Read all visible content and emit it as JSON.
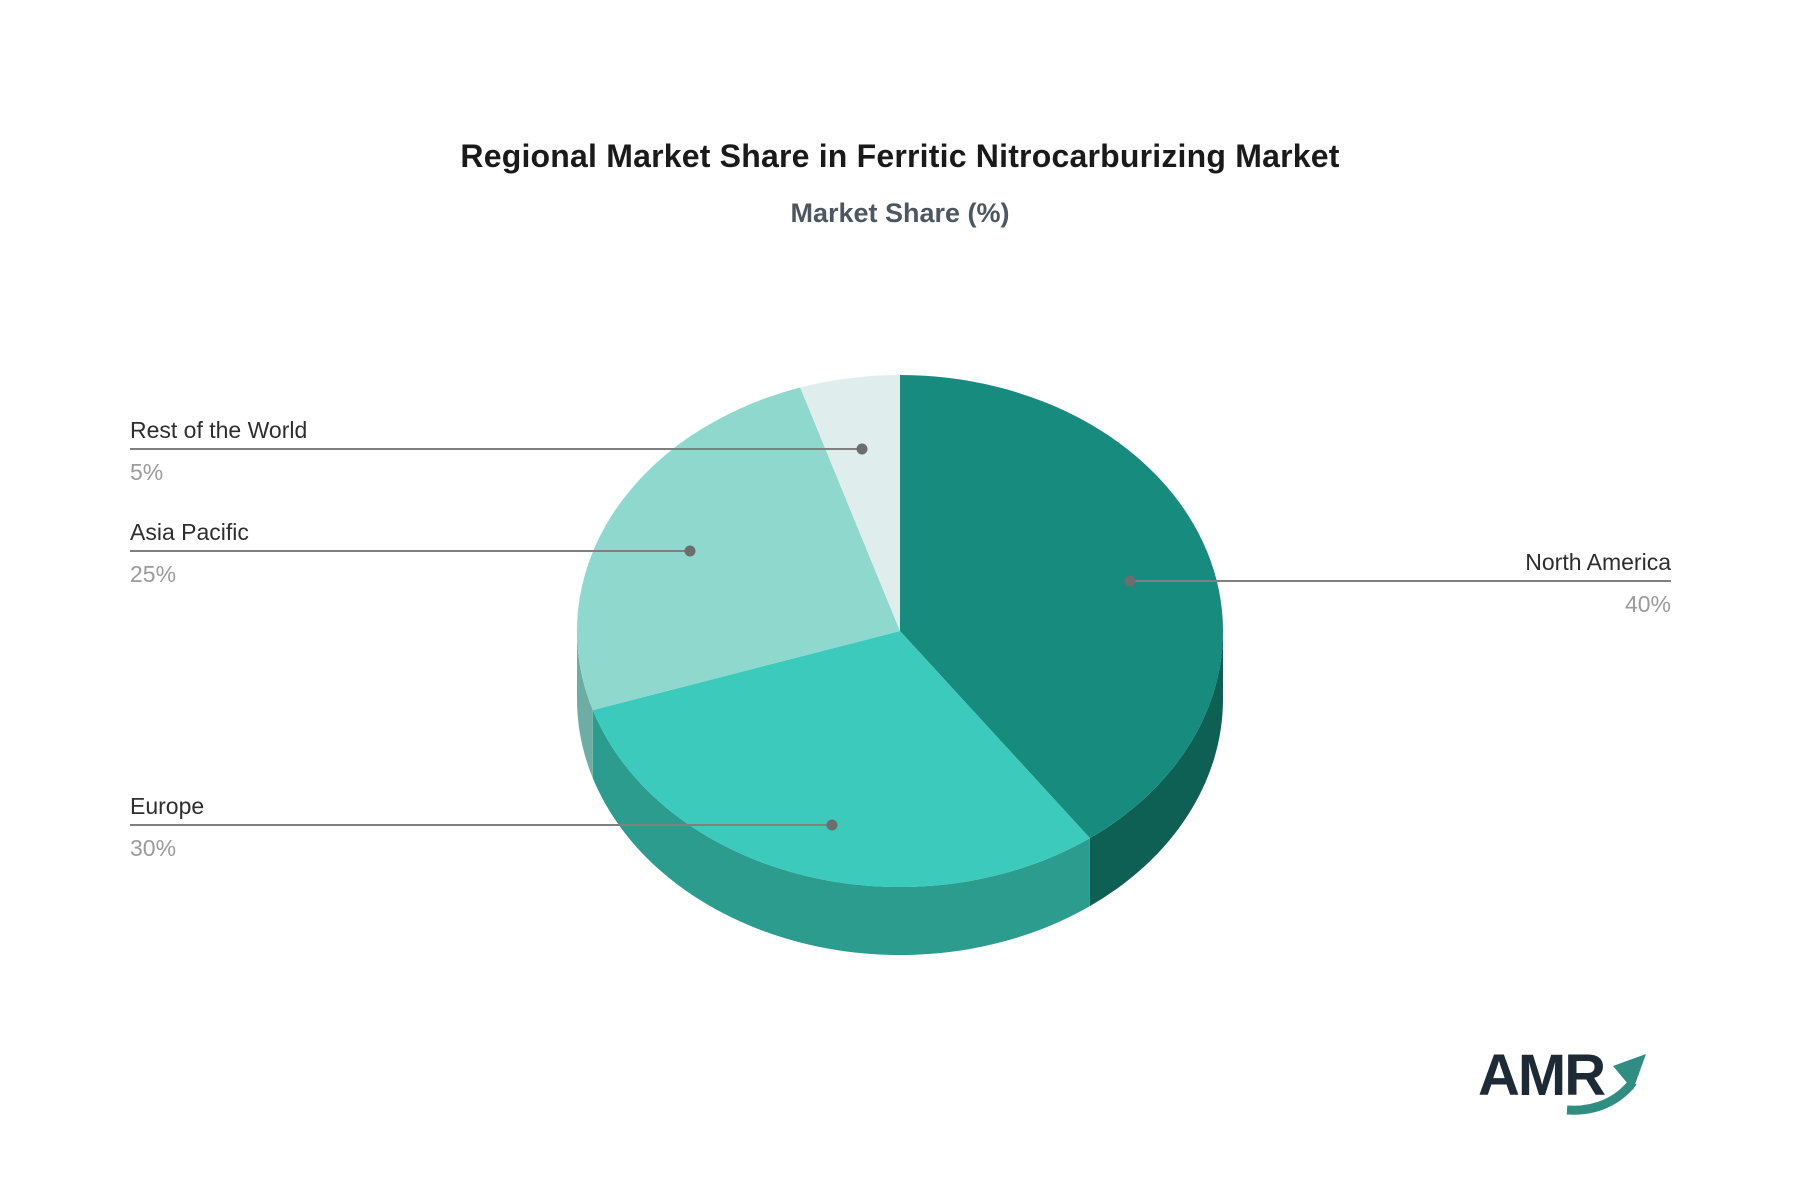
{
  "chart_data": {
    "type": "pie",
    "style": "pie3d",
    "title": "Regional Market Share in Ferritic Nitrocarburizing Market",
    "subtitle": "Market Share (%)",
    "start_angle_deg": 0,
    "direction": "clockwise",
    "labels": [
      "North America",
      "Europe",
      "Asia Pacific",
      "Rest of the World"
    ],
    "values": [
      40,
      30,
      25,
      5
    ],
    "value_labels": [
      "40%",
      "30%",
      "25%",
      "5%"
    ],
    "unit": "%",
    "legend": "none",
    "colors": {
      "slices": [
        "#178b7e",
        "#3bcabb",
        "#8ed8ce",
        "#dfeeec"
      ],
      "slice_sides": [
        "#0e6055",
        "#2b9c8e",
        "#6dada4",
        "#c9e2df"
      ],
      "leader_line": "#808080",
      "leader_dot": "#6d6d6d",
      "label_text": "#2e2e2e",
      "value_text": "#9b9b9b",
      "title_text": "#1a1a1a",
      "subtitle_text": "#4d5761",
      "background": "#ffffff"
    }
  },
  "logo": {
    "text": "AMR",
    "text_color": "#1e2a35",
    "arrow_color": "#2f8d81"
  }
}
